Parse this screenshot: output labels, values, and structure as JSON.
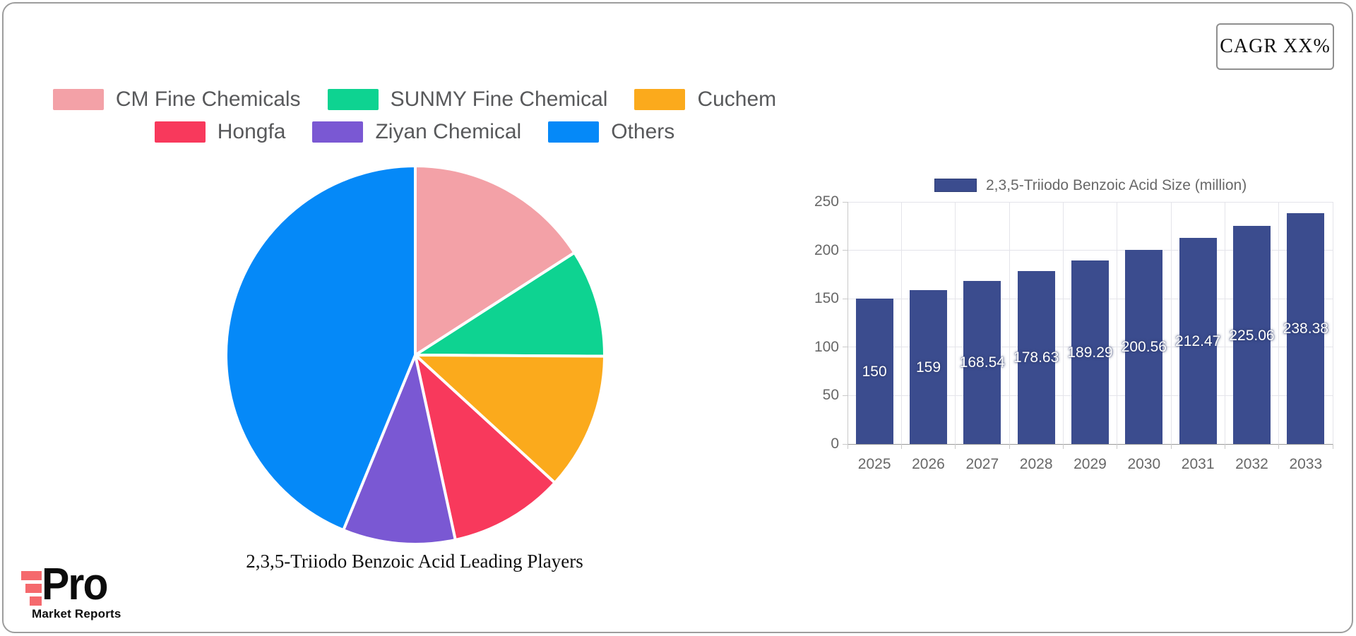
{
  "header": {
    "cagr_label": "CAGR XX%"
  },
  "logo": {
    "name": "Pro",
    "subtitle": "Market Reports",
    "bar_color": "#f5696d"
  },
  "colors": {
    "bar_fill": "#3b4c8e",
    "grid": "#e4e4ea",
    "axis_text": "#686868",
    "legend_text": "#58595b",
    "frame_border": "#9d9d9d"
  },
  "chart_data": [
    {
      "type": "pie",
      "title": "2,3,5-Triiodo Benzoic Acid Leading Players",
      "legend_position": "top",
      "start_angle_deg": 0,
      "direction": "clockwise",
      "series": [
        {
          "name": "CM Fine Chemicals",
          "share_pct": 15.9,
          "color": "#f3a1a7"
        },
        {
          "name": "SUNMY Fine Chemical",
          "share_pct": 9.2,
          "color": "#0ed391"
        },
        {
          "name": "Cuchem",
          "share_pct": 11.7,
          "color": "#fbaa1c"
        },
        {
          "name": "Hongfa",
          "share_pct": 9.8,
          "color": "#f8395c"
        },
        {
          "name": "Ziyan Chemical",
          "share_pct": 9.6,
          "color": "#7a58d3"
        },
        {
          "name": "Others",
          "share_pct": 43.8,
          "color": "#0589f8"
        }
      ]
    },
    {
      "type": "bar",
      "legend_label": "2,3,5-Triiodo Benzoic Acid Size (million)",
      "categories": [
        "2025",
        "2026",
        "2027",
        "2028",
        "2029",
        "2030",
        "2031",
        "2032",
        "2033"
      ],
      "values": [
        150,
        159,
        168.54,
        178.63,
        189.29,
        200.56,
        212.47,
        225.06,
        238.38
      ],
      "value_labels": [
        "150",
        "159",
        "168.54",
        "178.63",
        "189.29",
        "200.56",
        "212.47",
        "225.06",
        "238.38"
      ],
      "ylim": [
        0,
        250
      ],
      "y_ticks": [
        0,
        50,
        100,
        150,
        200,
        250
      ],
      "grid": true,
      "legend_position": "top",
      "bar_color": "#3b4c8e"
    }
  ]
}
